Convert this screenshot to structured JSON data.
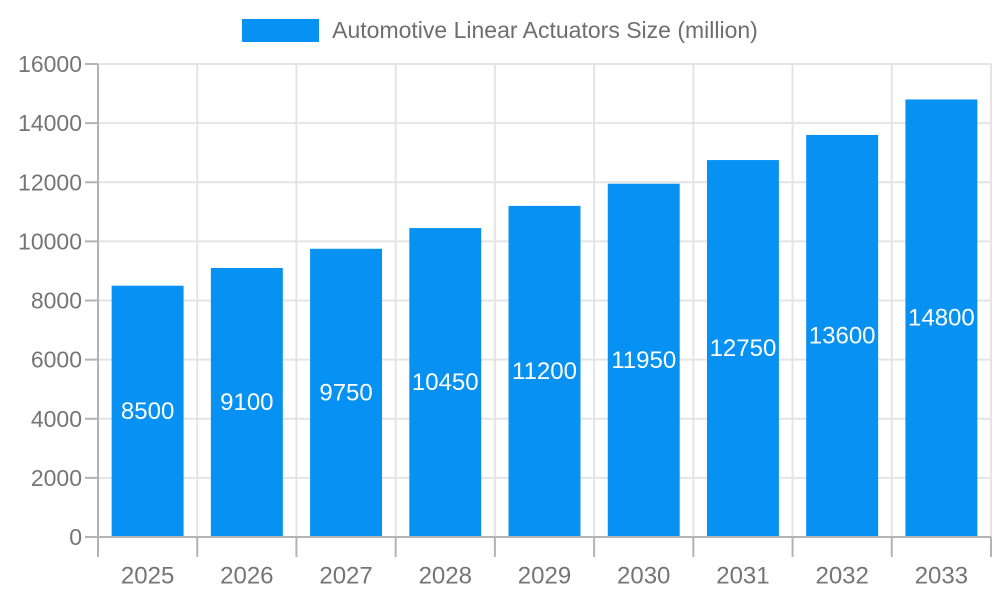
{
  "legend": {
    "label": "Automotive Linear Actuators Size (million)"
  },
  "colors": {
    "accent": "#0691f3",
    "grid": "#e4e4e4",
    "axis": "#b3b3b3",
    "tick_label": "#757575",
    "legend_label": "#6e6e6e",
    "bar_label": "#ffffff",
    "background": "#ffffff"
  },
  "chart_data": {
    "type": "bar",
    "title": "Automotive Linear Actuators Size (million)",
    "categories": [
      "2025",
      "2026",
      "2027",
      "2028",
      "2029",
      "2030",
      "2031",
      "2032",
      "2033"
    ],
    "values": [
      8500,
      9100,
      9750,
      10450,
      11200,
      11950,
      12750,
      13600,
      14800
    ],
    "series": [
      {
        "name": "Automotive Linear Actuators Size (million)",
        "values": [
          8500,
          9100,
          9750,
          10450,
          11200,
          11950,
          12750,
          13600,
          14800
        ]
      }
    ],
    "xlabel": "",
    "ylabel": "",
    "ylim": [
      0,
      16000
    ],
    "ytick_interval": 2000,
    "yticks": [
      0,
      2000,
      4000,
      6000,
      8000,
      10000,
      12000,
      14000,
      16000
    ],
    "grid": true,
    "legend_position": "top",
    "value_label_position": "inside-middle"
  }
}
